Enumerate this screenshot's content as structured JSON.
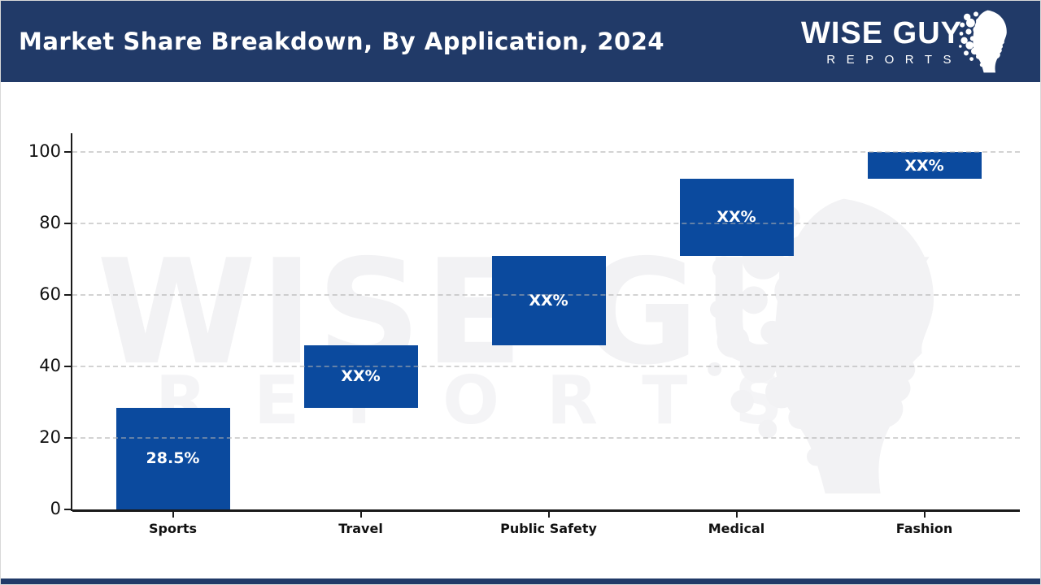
{
  "header": {
    "title": "Market Share Breakdown, By Application, 2024",
    "logo": {
      "line1": "WISE GUY",
      "line2": "REPORTS"
    }
  },
  "watermark": {
    "line1": "WISE GUY",
    "line2": "REPORTS"
  },
  "colors": {
    "header_bg": "#213a68",
    "bar_blue": "#0b4a9e",
    "bar_label": "#ffffff",
    "watermark": "#f2f2f4",
    "gridline": "#d9d9d9",
    "axis": "#1a1a1a"
  },
  "chart_data": {
    "type": "bar",
    "subtype": "floating-waterfall",
    "title": "Market Share Breakdown, By Application, 2024",
    "categories": [
      "Sports",
      "Travel",
      "Public Safety",
      "Medical",
      "Fashion"
    ],
    "segments": [
      {
        "category": "Sports",
        "start": 0,
        "end": 28.5,
        "label": "28.5%"
      },
      {
        "category": "Travel",
        "start": 28.5,
        "end": 46,
        "label": "XX%"
      },
      {
        "category": "Public Safety",
        "start": 46,
        "end": 71,
        "label": "XX%"
      },
      {
        "category": "Medical",
        "start": 71,
        "end": 92.5,
        "label": "XX%"
      },
      {
        "category": "Fashion",
        "start": 92.5,
        "end": 100,
        "label": "XX%"
      }
    ],
    "xlabel": "",
    "ylabel": "",
    "yticks": [
      0,
      20,
      40,
      60,
      80,
      100
    ],
    "ylim": [
      0,
      105
    ],
    "grid": "dashed-horizontal",
    "legend": "none",
    "bar_color": "#0b4a9e"
  }
}
